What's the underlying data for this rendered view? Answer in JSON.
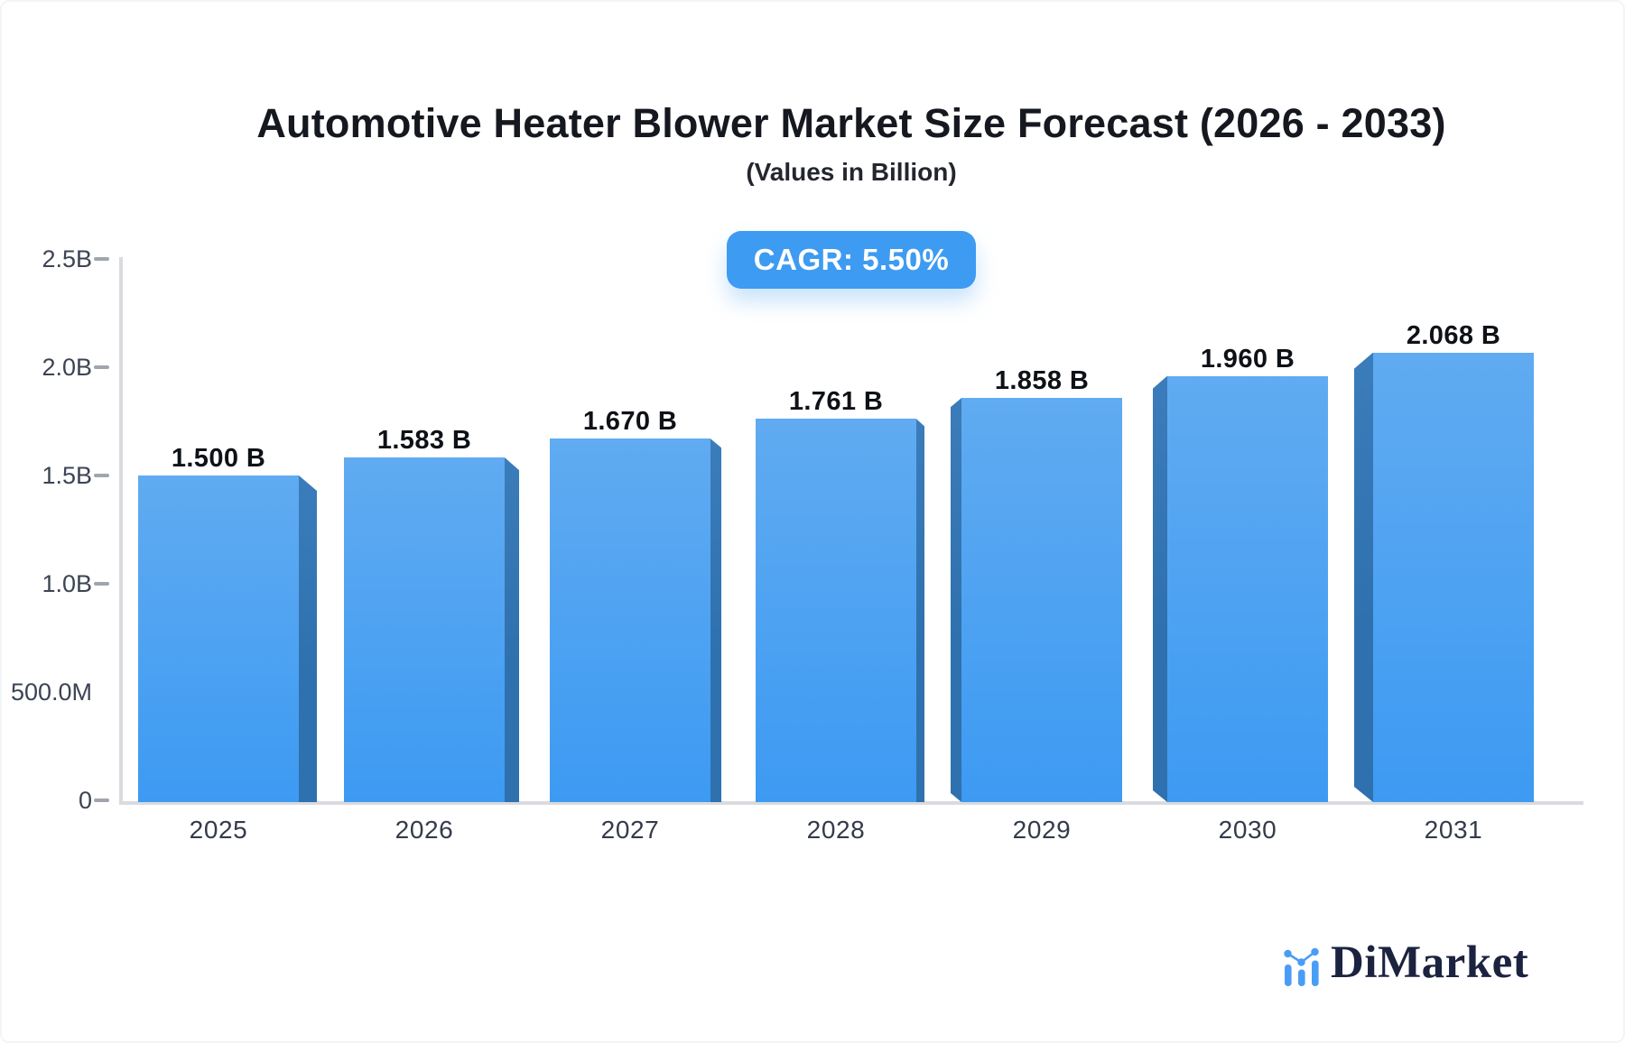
{
  "chart_data": {
    "type": "bar",
    "title": "Automotive Heater Blower Market Size Forecast (2026 - 2033)",
    "subtitle": "(Values in Billion)",
    "cagr_label": "CAGR: 5.50%",
    "categories": [
      "2025",
      "2026",
      "2027",
      "2028",
      "2029",
      "2030",
      "2031"
    ],
    "values": [
      1.5,
      1.583,
      1.67,
      1.761,
      1.858,
      1.96,
      2.068
    ],
    "value_labels": [
      "1.500 B",
      "1.583 B",
      "1.670 B",
      "1.761 B",
      "1.858 B",
      "1.960 B",
      "2.068 B"
    ],
    "unit": "Billion",
    "xlabel": "",
    "ylabel": "",
    "ylim": [
      0,
      2.5
    ],
    "grid": false,
    "legend": "none",
    "y_ticks": [
      {
        "label": "2.5B",
        "value": 2.5
      },
      {
        "label": "2.0B",
        "value": 2.0
      },
      {
        "label": "1.5B",
        "value": 1.5
      },
      {
        "label": "1.0B",
        "value": 1.0
      },
      {
        "label": "500.0M",
        "value": 0.5,
        "tick": false
      },
      {
        "label": "0",
        "value": 0
      }
    ]
  },
  "branding": {
    "logo_text": "DiMarket",
    "logo_icon": "bar-line-chart-icon"
  },
  "colors": {
    "badge_bg": "#3E9BF2",
    "bar_top": "#60ABF1",
    "bar_bottom": "#3D9AF2",
    "bar_side": "#2F71AE",
    "axis_line": "#D9DBDF",
    "tick": "#A0A5AD",
    "axis_text": "#3C4454",
    "title_text": "#15181F",
    "logo_blue": "#4A9DF5",
    "logo_navy": "#1B2340"
  }
}
